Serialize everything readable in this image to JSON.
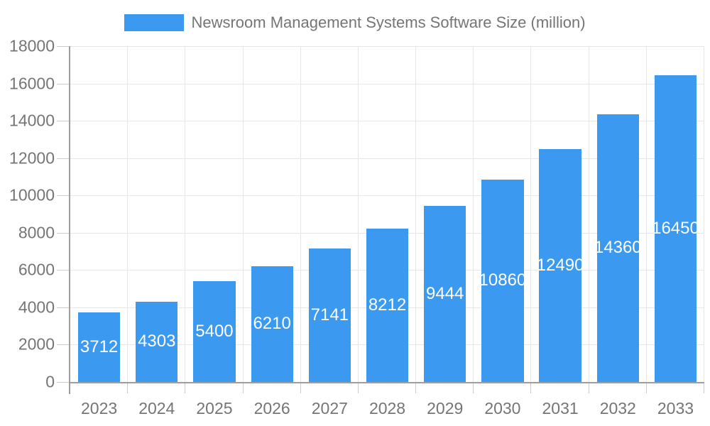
{
  "legend": {
    "label": "Newsroom Management Systems Software Size (million)"
  },
  "chart_data": {
    "type": "bar",
    "title": "Newsroom Management Systems Software Size (million)",
    "series_name": "Newsroom Management Systems Software Size (million)",
    "categories": [
      "2023",
      "2024",
      "2025",
      "2026",
      "2027",
      "2028",
      "2029",
      "2030",
      "2031",
      "2032",
      "2033"
    ],
    "values": [
      3712,
      4303,
      5400,
      6210,
      7141,
      8212,
      9444,
      10860,
      12490,
      14360,
      16450
    ],
    "xlabel": "",
    "ylabel": "",
    "ylim": [
      0,
      18000
    ],
    "ytick_step": 2000,
    "ytick_labels": [
      "0",
      "2000",
      "4000",
      "6000",
      "8000",
      "10000",
      "12000",
      "14000",
      "16000",
      "18000"
    ],
    "grid": true,
    "legend_position": "top",
    "bar_labels_visible": true,
    "colors": {
      "bar": "#3B99F0",
      "bar_label": "#ffffff",
      "axis": "#9e9e9e",
      "grid": "#e6e6e6",
      "tick": "#cccccc",
      "text": "#757575",
      "background": "#ffffff"
    }
  }
}
